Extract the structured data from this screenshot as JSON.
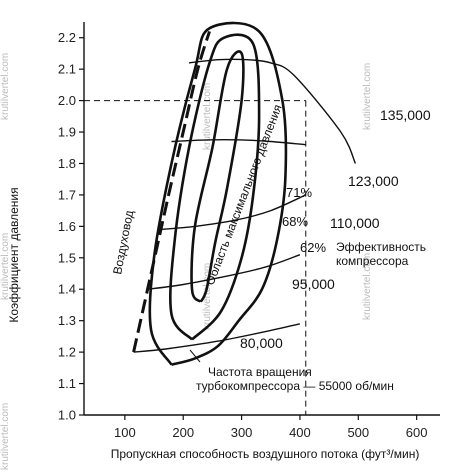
{
  "watermark": "krutilvertel.com",
  "chart_data": {
    "type": "line",
    "title": "",
    "xlabel": "Пропускная способность воздушного потока (фут³/мин)",
    "ylabel": "Коэффициент давления",
    "xlim": [
      30,
      640
    ],
    "ylim": [
      1.0,
      2.25
    ],
    "x_ticks": [
      "100",
      "200",
      "300",
      "400",
      "500",
      "600"
    ],
    "x_tick_values": [
      100,
      200,
      300,
      400,
      500,
      600
    ],
    "y_ticks": [
      "1.0",
      "1.1",
      "1.2",
      "1.3",
      "1.4",
      "1.5",
      "1.6",
      "1.7",
      "1.8",
      "1.9",
      "2.0",
      "2.1",
      "2.2"
    ],
    "y_tick_values": [
      1.0,
      1.1,
      1.2,
      1.3,
      1.4,
      1.5,
      1.6,
      1.7,
      1.8,
      1.9,
      2.0,
      2.1,
      2.2
    ],
    "grid": false,
    "surge_line": {
      "label": "Воздуховод",
      "points": [
        [
          115,
          1.2
        ],
        [
          145,
          1.45
        ],
        [
          175,
          1.7
        ],
        [
          200,
          1.9
        ],
        [
          225,
          2.1
        ],
        [
          245,
          2.22
        ]
      ]
    },
    "speed_lines": [
      {
        "label": "80,000",
        "points": [
          [
            115,
            1.2
          ],
          [
            170,
            1.21
          ],
          [
            260,
            1.235
          ],
          [
            340,
            1.265
          ],
          [
            400,
            1.29
          ]
        ]
      },
      {
        "label": "95,000",
        "points": [
          [
            140,
            1.4
          ],
          [
            200,
            1.415
          ],
          [
            270,
            1.44
          ],
          [
            340,
            1.47
          ],
          [
            400,
            1.51
          ]
        ]
      },
      {
        "label": "110,000",
        "points": [
          [
            160,
            1.59
          ],
          [
            220,
            1.6
          ],
          [
            290,
            1.62
          ],
          [
            350,
            1.65
          ],
          [
            410,
            1.7
          ]
        ]
      },
      {
        "label": "123,000",
        "points": [
          [
            180,
            1.87
          ],
          [
            240,
            1.875
          ],
          [
            300,
            1.875
          ],
          [
            350,
            1.87
          ],
          [
            410,
            1.86
          ]
        ]
      },
      {
        "label": "135,000",
        "points": [
          [
            210,
            2.12
          ],
          [
            260,
            2.13
          ],
          [
            310,
            2.13
          ],
          [
            350,
            2.12
          ],
          [
            390,
            2.08
          ],
          [
            470,
            1.9
          ],
          [
            495,
            1.8
          ]
        ]
      }
    ],
    "efficiency_islands": [
      {
        "label": "71%",
        "points": [
          [
            230,
            1.36
          ],
          [
            215,
            1.4
          ],
          [
            220,
            1.6
          ],
          [
            250,
            1.85
          ],
          [
            275,
            2.1
          ],
          [
            300,
            2.15
          ],
          [
            300,
            2.0
          ],
          [
            275,
            1.72
          ],
          [
            255,
            1.55
          ],
          [
            240,
            1.4
          ],
          [
            230,
            1.36
          ]
        ]
      },
      {
        "label": "68%",
        "points": [
          [
            215,
            1.24
          ],
          [
            180,
            1.32
          ],
          [
            185,
            1.55
          ],
          [
            210,
            1.85
          ],
          [
            245,
            2.12
          ],
          [
            270,
            2.2
          ],
          [
            320,
            2.18
          ],
          [
            330,
            1.95
          ],
          [
            320,
            1.7
          ],
          [
            300,
            1.5
          ],
          [
            265,
            1.33
          ],
          [
            215,
            1.24
          ]
        ]
      },
      {
        "label": "62%",
        "points": [
          [
            180,
            1.16
          ],
          [
            145,
            1.27
          ],
          [
            150,
            1.5
          ],
          [
            180,
            1.8
          ],
          [
            220,
            2.1
          ],
          [
            245,
            2.23
          ],
          [
            330,
            2.22
          ],
          [
            370,
            2.0
          ],
          [
            375,
            1.75
          ],
          [
            360,
            1.55
          ],
          [
            335,
            1.4
          ],
          [
            295,
            1.3
          ],
          [
            260,
            1.22
          ],
          [
            220,
            1.18
          ],
          [
            180,
            1.16
          ]
        ]
      }
    ],
    "annotations": {
      "max_pressure": "Область максимального давления",
      "efficiency": [
        "Эффективность",
        "компрессора"
      ],
      "turbo_speed": [
        "Частота вращения",
        "турбокомпрессора — 55000 об/мин"
      ]
    },
    "reference_point": {
      "x": 410,
      "y": 2.0
    }
  }
}
